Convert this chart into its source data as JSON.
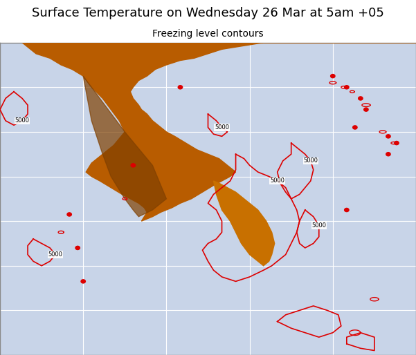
{
  "title": "Surface Temperature on Wednesday 26 Mar at 5am +05",
  "subtitle": "Freezing level contours",
  "title_fontsize": 13,
  "subtitle_fontsize": 10,
  "background_ocean": "#c8d4e8",
  "background_land_india": "#c87000",
  "background_land_srilanka": "#c87000",
  "contour_color": "#dd0000",
  "contour_label": "5000",
  "grid_color": "#ffffff",
  "grid_linewidth": 0.8,
  "border_color": "#888888",
  "fig_bg": "#ffffff",
  "header_bg": "#ffffff",
  "map_extent": [
    72,
    87,
    2,
    16
  ],
  "grid_lon": [
    72,
    75,
    78,
    81,
    84,
    87
  ],
  "grid_lat": [
    2,
    4,
    6,
    8,
    10,
    12,
    14,
    16
  ]
}
